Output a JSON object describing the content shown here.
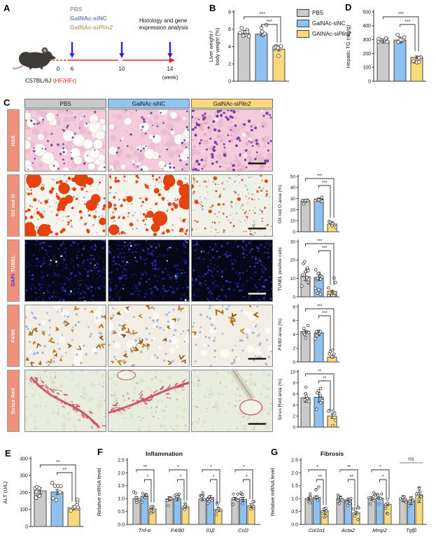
{
  "panel_letters": {
    "a": "A",
    "b": "B",
    "c": "C",
    "d": "D",
    "e": "E",
    "f": "F",
    "g": "G"
  },
  "colors": {
    "bar_fill": [
      "#cacaca",
      "#8fc1f0",
      "#fad97d"
    ],
    "bar_stroke": "#4a4a4a",
    "row_label_bg": "#f0927b",
    "header_fills": [
      "#c9c9c9",
      "#92c4f0",
      "#fbd87e"
    ],
    "timeline_red": "#e8211d",
    "arrow_blue": "#2a25d8",
    "dapi_blue": "#3434e8"
  },
  "panel_a": {
    "treatments": [
      {
        "pre": "PBS",
        "it": "",
        "color": "#a49e94"
      },
      {
        "pre": "GalNAc-siNC",
        "it": "",
        "color": "#7580c2"
      },
      {
        "pre": "GalNAc-si",
        "it": "Plin2",
        "color": "#b9a96e"
      }
    ],
    "annotation_line1": "Histology and gene",
    "annotation_line2": "expression analysis",
    "weeks": [
      "0",
      "6",
      "10",
      "14"
    ],
    "week_unit": "(week)",
    "arrow_weeks": [
      "6",
      "10",
      "14"
    ],
    "strain": "C57BL/6J ",
    "diet": "(HF/HFr)"
  },
  "legend_b": {
    "items": [
      {
        "pre": "PBS",
        "it": ""
      },
      {
        "pre": "GalNAc-siNC",
        "it": ""
      },
      {
        "pre": "GAINAc-si",
        "it": "Plin2"
      }
    ]
  },
  "panel_c": {
    "columns": [
      {
        "pre": "PBS",
        "it": ""
      },
      {
        "pre": "GalNAc-siNC",
        "it": ""
      },
      {
        "pre": "GalNAc-si",
        "it": "Plin2"
      }
    ],
    "rows": [
      {
        "stain": "he",
        "parts": [
          {
            "text": "H&E",
            "color": "#ffffff"
          }
        ]
      },
      {
        "stain": "oilred",
        "parts": [
          {
            "text": "Oil red O",
            "color": "#ffffff"
          }
        ]
      },
      {
        "stain": "tunel",
        "parts": [
          {
            "text": "DAPI",
            "color": "#3434e8"
          },
          {
            "text": " TUNEL",
            "color": "#ffffff"
          }
        ]
      },
      {
        "stain": "f480",
        "parts": [
          {
            "text": "F4/80",
            "color": "#ffffff"
          }
        ]
      },
      {
        "stain": "sirius",
        "parts": [
          {
            "text": "Sirius Red",
            "color": "#ffffff"
          }
        ]
      }
    ]
  },
  "chart_data": [
    {
      "id": "B",
      "type": "bar",
      "kind": "bars",
      "title": "",
      "ylabel": [
        "Liver weight /",
        "body weight (%)"
      ],
      "categories": [
        "PBS",
        "GalNAc-siNC",
        "GAINAc-siPlin2"
      ],
      "values": [
        5.5,
        5.45,
        3.7
      ],
      "errors": [
        0.35,
        0.2,
        0.2
      ],
      "n": [
        6,
        6,
        8
      ],
      "spread": 0.85,
      "ylim": [
        0,
        8
      ],
      "yticks": [
        "0",
        "2",
        "4",
        "6",
        "8"
      ],
      "sig": [
        {
          "from": 0,
          "to": 2,
          "label": "***"
        },
        {
          "from": 1,
          "to": 2,
          "label": "***"
        }
      ]
    },
    {
      "id": "D",
      "type": "bar",
      "kind": "bars",
      "title": "",
      "ylabel": [
        "Hepatic TG (mg/g)"
      ],
      "categories": [
        "PBS",
        "GalNAc-siNC",
        "GAINAc-siPlin2"
      ],
      "values": [
        290,
        297,
        172
      ],
      "errors": [
        15,
        22,
        10
      ],
      "n": [
        6,
        6,
        6
      ],
      "spread": 28,
      "ylim": [
        0,
        500
      ],
      "yticks": [
        "0",
        "100",
        "200",
        "300",
        "400",
        "500"
      ],
      "sig": [
        {
          "from": 0,
          "to": 2,
          "label": "***"
        },
        {
          "from": 1,
          "to": 2,
          "label": "***"
        }
      ]
    },
    {
      "id": "oilred",
      "type": "bar",
      "kind": "bars",
      "title": "",
      "ylabel": [
        "Oil red O area (%)"
      ],
      "categories": [
        "PBS",
        "GalNAc-siNC",
        "GalNAc-siPlin2"
      ],
      "values": [
        28,
        29.5,
        7
      ],
      "errors": [
        1.3,
        1.0,
        0.9
      ],
      "n": [
        7,
        8,
        7
      ],
      "spread": 2.6,
      "ylim": [
        0,
        50
      ],
      "yticks": [
        "0",
        "10",
        "20",
        "30",
        "40",
        "50"
      ],
      "sig": [
        {
          "from": 0,
          "to": 2,
          "label": "***"
        },
        {
          "from": 1,
          "to": 2,
          "label": "***"
        }
      ]
    },
    {
      "id": "tunel",
      "type": "bar",
      "kind": "bars",
      "title": "",
      "ylabel": [
        "TUNEL positive cells"
      ],
      "categories": [
        "PBS",
        "GalNAc-siNC",
        "GalNAc-siPlin2"
      ],
      "values": [
        11,
        10.5,
        3
      ],
      "errors": [
        2.2,
        1.6,
        0.6
      ],
      "n": [
        12,
        13,
        12
      ],
      "spread": 7,
      "ylim": [
        0,
        30
      ],
      "yticks": [
        "0",
        "10",
        "20",
        "30"
      ],
      "sig": [
        {
          "from": 0,
          "to": 2,
          "label": "***"
        },
        {
          "from": 1,
          "to": 2,
          "label": "***"
        }
      ]
    },
    {
      "id": "f480",
      "type": "bar",
      "kind": "bars",
      "title": "",
      "ylabel": [
        "F4/80 area (%)"
      ],
      "categories": [
        "PBS",
        "GalNAc-siNC",
        "GalNAc-siPlin2"
      ],
      "values": [
        4.4,
        4.2,
        0.7
      ],
      "errors": [
        0.2,
        0.4,
        0.12
      ],
      "n": [
        7,
        7,
        7
      ],
      "spread": 0.75,
      "ylim": [
        0,
        8
      ],
      "yticks": [
        "0",
        "2",
        "4",
        "6",
        "8"
      ],
      "sig": [
        {
          "from": 0,
          "to": 2,
          "label": "***"
        },
        {
          "from": 1,
          "to": 2,
          "label": "***"
        }
      ]
    },
    {
      "id": "sirius",
      "type": "bar",
      "kind": "bars",
      "title": "",
      "ylabel": [
        "Sirius Red area (%)"
      ],
      "categories": [
        "PBS",
        "GalNAc-siNC",
        "GalNAc-siPlin2"
      ],
      "values": [
        5.3,
        5.4,
        2.0
      ],
      "errors": [
        0.8,
        0.85,
        0.4
      ],
      "n": [
        6,
        7,
        6
      ],
      "spread": 1.7,
      "ylim": [
        0,
        10
      ],
      "yticks": [
        "0",
        "2",
        "4",
        "6",
        "8",
        "10"
      ],
      "sig": [
        {
          "from": 0,
          "to": 2,
          "label": "**"
        },
        {
          "from": 1,
          "to": 2,
          "label": "**"
        }
      ]
    },
    {
      "id": "E",
      "type": "bar",
      "kind": "bars",
      "title": "",
      "ylabel": [
        "ALT (U/L)"
      ],
      "categories": [
        "PBS",
        "GalNAc-siNC",
        "GAINAc-siPlin2"
      ],
      "values": [
        210,
        203,
        110
      ],
      "errors": [
        18,
        15,
        12
      ],
      "n": [
        7,
        7,
        7
      ],
      "spread": 40,
      "ylim": [
        0,
        400
      ],
      "yticks": [
        "0",
        "100",
        "200",
        "300",
        "400"
      ],
      "sig": [
        {
          "from": 0,
          "to": 2,
          "label": "**"
        },
        {
          "from": 1,
          "to": 2,
          "label": "**"
        }
      ]
    },
    {
      "id": "F",
      "type": "bar",
      "kind": "grouped",
      "title": "Inflammation",
      "ylabel": [
        "Relative mRNA level"
      ],
      "categories": [
        "Tnf-α",
        "F4/80",
        "Il1β",
        "Ccl2"
      ],
      "series": [
        {
          "name": "PBS",
          "values": [
            1.0,
            1.0,
            1.0,
            1.0
          ],
          "errors": [
            0.08,
            0.08,
            0.08,
            0.05
          ]
        },
        {
          "name": "GalNAc-siNC",
          "values": [
            1.1,
            1.0,
            1.05,
            0.97
          ],
          "errors": [
            0.07,
            0.08,
            0.07,
            0.08
          ]
        },
        {
          "name": "GAINAc-siPlin2",
          "values": [
            0.6,
            0.68,
            0.58,
            0.73
          ],
          "errors": [
            0.09,
            0.05,
            0.08,
            0.07
          ]
        }
      ],
      "n": 6,
      "spread": 0.2,
      "ylim": [
        0,
        2.5
      ],
      "yticks": [
        "0.0",
        "0.5",
        "1.0",
        "1.5",
        "2.0",
        "2.5"
      ],
      "sig_groups": [
        [
          {
            "from": 0,
            "to": 2,
            "label": "**"
          },
          {
            "from": 1,
            "to": 2,
            "label": "*"
          }
        ],
        [
          {
            "from": 0,
            "to": 2,
            "label": "*"
          },
          {
            "from": 1,
            "to": 2,
            "label": "*"
          }
        ],
        [
          {
            "from": 0,
            "to": 2,
            "label": "*"
          },
          {
            "from": 1,
            "to": 2,
            "label": "*"
          }
        ],
        [
          {
            "from": 0,
            "to": 2,
            "label": "*"
          },
          {
            "from": 1,
            "to": 2,
            "label": "*"
          }
        ]
      ]
    },
    {
      "id": "G",
      "type": "bar",
      "kind": "grouped",
      "title": "Fibrosis",
      "ylabel": [
        "Relative mRNA level"
      ],
      "categories": [
        "Col1α1",
        "Acta2",
        "Mmp2",
        "Tgfβ"
      ],
      "series": [
        {
          "name": "PBS",
          "values": [
            1.0,
            1.0,
            1.0,
            1.0
          ],
          "errors": [
            0.05,
            0.1,
            0.07,
            0.12
          ]
        },
        {
          "name": "GalNAc-siNC",
          "values": [
            1.05,
            0.95,
            1.02,
            0.92
          ],
          "errors": [
            0.06,
            0.07,
            0.04,
            0.15
          ]
        },
        {
          "name": "GAINAc-siPlin2",
          "values": [
            0.52,
            0.45,
            0.78,
            1.15
          ],
          "errors": [
            0.12,
            0.05,
            0.05,
            0.3
          ]
        }
      ],
      "n": 6,
      "spread": 0.22,
      "ylim": [
        0,
        2.5
      ],
      "yticks": [
        "0.0",
        "0.5",
        "1.0",
        "1.5",
        "2.0",
        "2.5"
      ],
      "sig_groups": [
        [
          {
            "from": 0,
            "to": 2,
            "label": "*"
          },
          {
            "from": 1,
            "to": 2,
            "label": "**"
          }
        ],
        [
          {
            "from": 0,
            "to": 2,
            "label": "**"
          },
          {
            "from": 1,
            "to": 2,
            "label": "**"
          }
        ],
        [
          {
            "from": 0,
            "to": 2,
            "label": "*"
          },
          {
            "from": 1,
            "to": 2,
            "label": "*"
          }
        ],
        [
          {
            "ns": true,
            "label": "ns"
          }
        ]
      ]
    }
  ]
}
